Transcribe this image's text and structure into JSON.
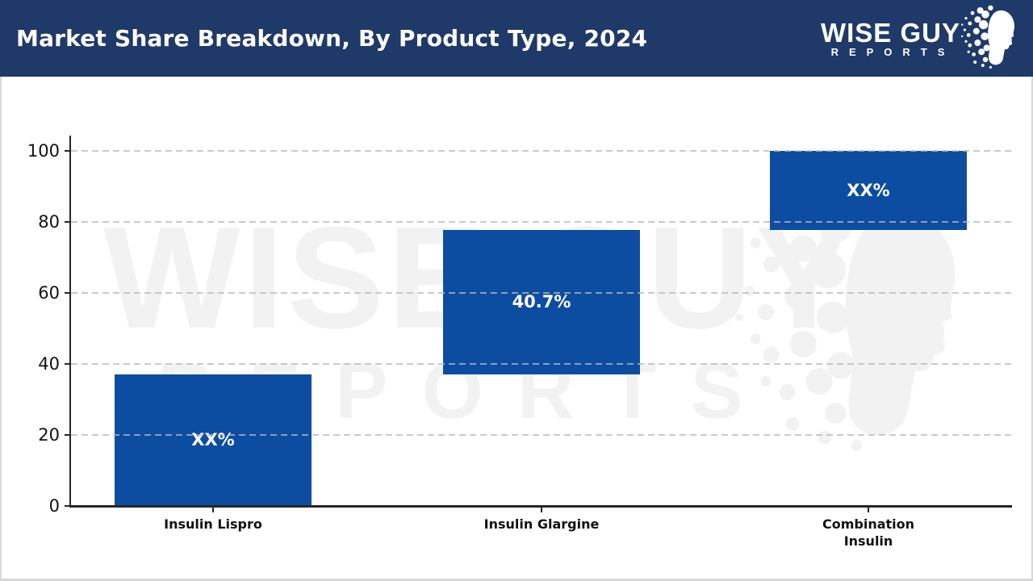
{
  "header": {
    "title": "Market Share Breakdown, By Product Type, 2024",
    "logo": {
      "line1": "WISE GUY",
      "line2": "REPORTS"
    }
  },
  "watermark": {
    "line1": "WISE GUY",
    "line2": "REPORTS"
  },
  "chart_data": {
    "type": "bar",
    "subtype": "floating-waterfall",
    "title": "Market Share Breakdown, By Product Type, 2024",
    "categories": [
      "Insulin Lispro",
      "Insulin Glargine",
      "Combination Insulin"
    ],
    "bars": [
      {
        "category": "Insulin Lispro",
        "start": 0,
        "end": 37.1,
        "label": "XX%"
      },
      {
        "category": "Insulin Glargine",
        "start": 37.1,
        "end": 77.8,
        "label": "40.7%"
      },
      {
        "category": "Combination Insulin",
        "start": 77.8,
        "end": 100,
        "label": "XX%"
      }
    ],
    "yticks": [
      0,
      20,
      40,
      60,
      80,
      100
    ],
    "ylim": [
      0,
      103.5
    ],
    "xlabel": "",
    "ylabel": "",
    "grid": "dashed-horizontal",
    "legend": "none",
    "bar_color": "#0d4da1",
    "bar_label_color": "#ffffff"
  },
  "colors": {
    "header_bg": "#1f3a68",
    "bar": "#0d4da1",
    "axis": "#262626",
    "grid": "#bbbbbb",
    "watermark": "#f2f2f2",
    "frame_border": "#d8d8d8"
  }
}
